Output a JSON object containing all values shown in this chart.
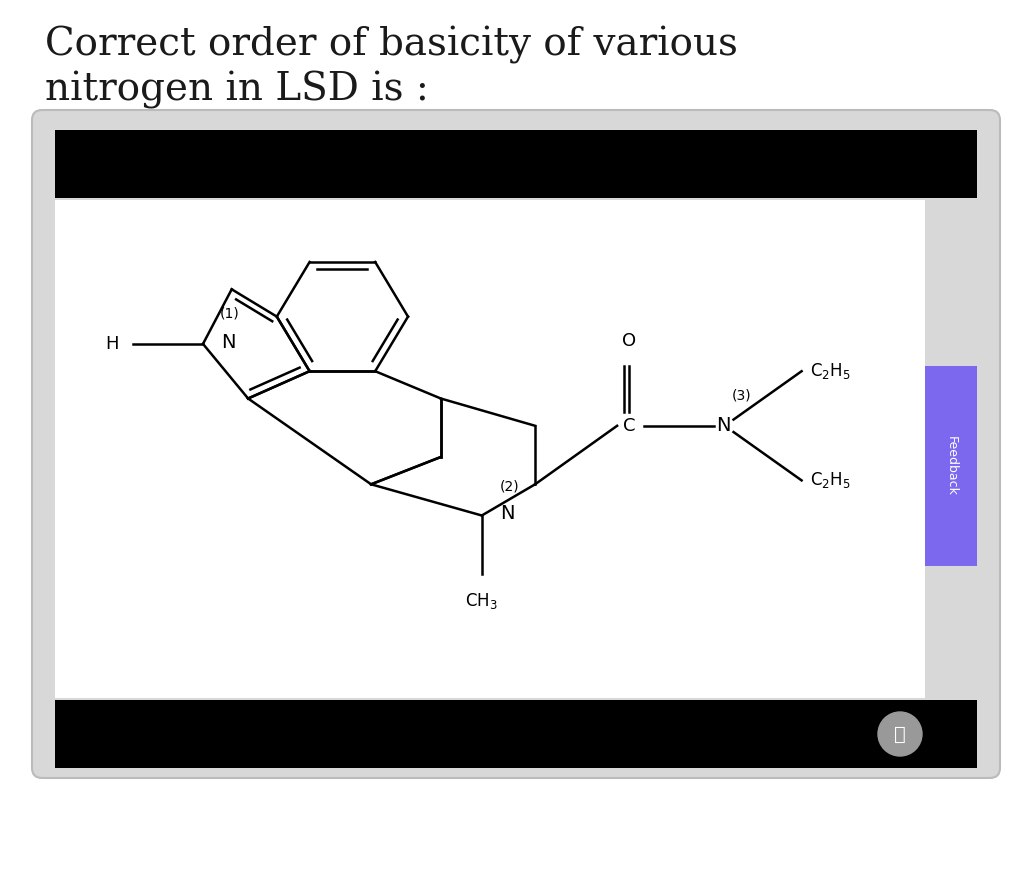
{
  "title_line1": "Correct order of basicity of various",
  "title_line2": "nitrogen in LSD is :",
  "title_fontsize": 28,
  "title_color": "#1a1a1a",
  "bg_color": "#ffffff",
  "card_bg": "#d8d8d8",
  "card_black": "#000000",
  "card_white": "#ffffff",
  "feedback_bg": "#7b68ee",
  "feedback_text": "Feedback",
  "feedback_color": "#ffffff",
  "bond_lw": 1.8,
  "bond_color": "#000000"
}
